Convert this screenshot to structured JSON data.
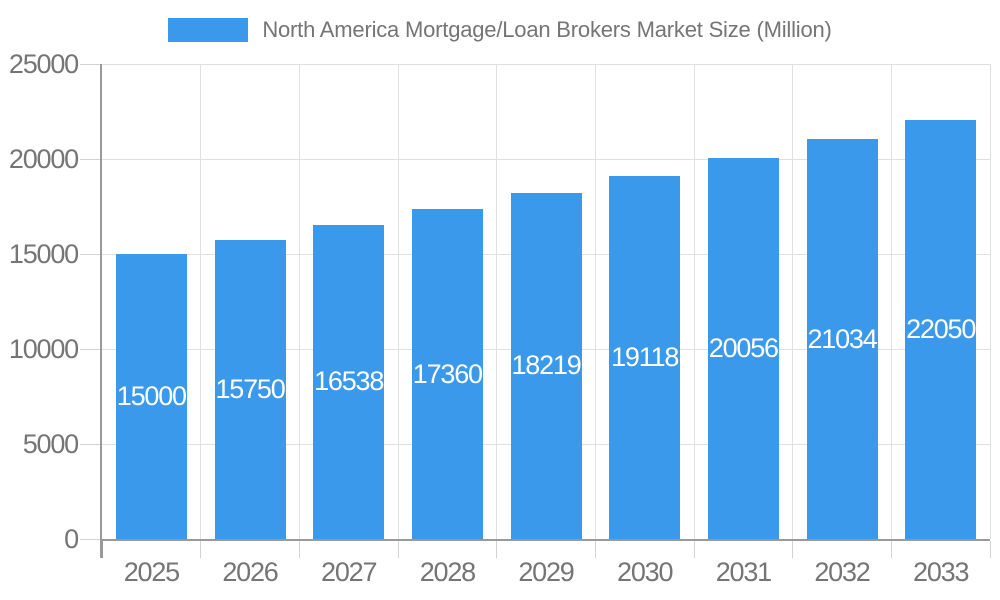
{
  "legend": {
    "label": "North America Mortgage/Loan Brokers Market Size (Million)",
    "swatch_color": "#3B99EC"
  },
  "chart_data": {
    "type": "bar",
    "title": "North America Mortgage/Loan Brokers Market Size (Million)",
    "categories": [
      "2025",
      "2026",
      "2027",
      "2028",
      "2029",
      "2030",
      "2031",
      "2032",
      "2033"
    ],
    "values": [
      15000,
      15750,
      16538,
      17360,
      18219,
      19118,
      20056,
      21034,
      22050
    ],
    "value_labels": [
      "15000",
      "15750",
      "16538",
      "17360",
      "18219",
      "19118",
      "20056",
      "21034",
      "22050"
    ],
    "xlabel": "",
    "ylabel": "",
    "ylim": [
      0,
      25000
    ],
    "yticks": [
      0,
      5000,
      10000,
      15000,
      20000,
      25000
    ],
    "ytick_labels": [
      "0",
      "5000",
      "10000",
      "15000",
      "20000",
      "25000"
    ],
    "grid": true,
    "legend_position": "top",
    "bar_color": "#3B99EC",
    "value_label_color": "#FFFFFF"
  },
  "colors": {
    "background": "#FFFFFF",
    "bar": "#3B99EC",
    "label_text": "#757575",
    "axis_line": "#999999",
    "grid_line": "#E0E0E0",
    "tick_line": "#D2D2D2"
  }
}
